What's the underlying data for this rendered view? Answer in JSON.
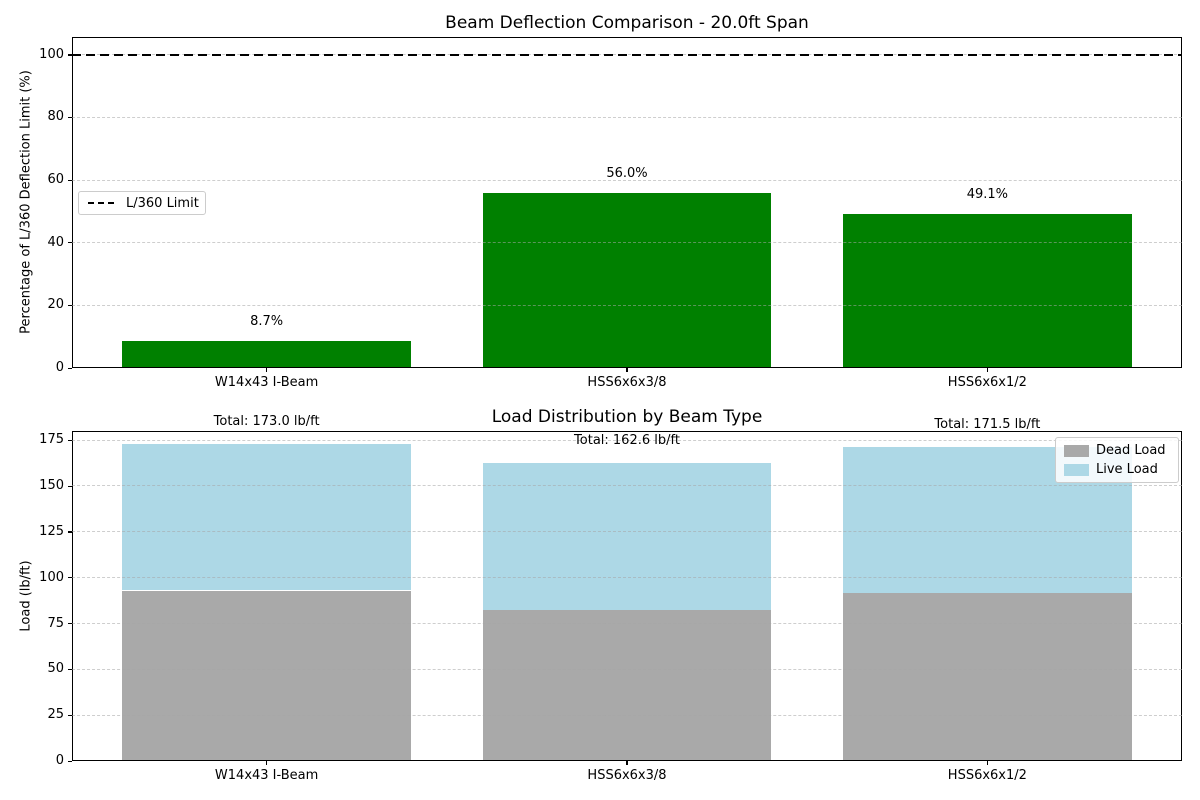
{
  "chart_data": [
    {
      "id": "deflection-comparison",
      "type": "bar",
      "title": "Beam Deflection Comparison - 20.0ft Span",
      "ylabel": "Percentage of L/360 Deflection Limit (%)",
      "xlabel": "",
      "categories": [
        "W14x43 I-Beam",
        "HSS6x6x3/8",
        "HSS6x6x1/2"
      ],
      "values": [
        8.7,
        56.0,
        49.1
      ],
      "bar_labels": [
        "8.7%",
        "56.0%",
        "49.1%"
      ],
      "bar_color": "#008000",
      "yticks": [
        0,
        20,
        40,
        60,
        80,
        100
      ],
      "ylim": [
        0,
        105.7
      ],
      "grid": "dashed horizontal",
      "ref_line": {
        "value": 100,
        "label": "L/360 Limit",
        "color": "#000000",
        "linestyle": "dashed"
      },
      "legend_position": "center-left"
    },
    {
      "id": "load-distribution",
      "type": "bar",
      "stacked": true,
      "title": "Load Distribution by Beam Type",
      "ylabel": "Load (lb/ft)",
      "xlabel": "",
      "categories": [
        "W14x43 I-Beam",
        "HSS6x6x3/8",
        "HSS6x6x1/2"
      ],
      "series": [
        {
          "name": "Dead Load",
          "color": "#a9a9a9",
          "values": [
            93.0,
            82.6,
            91.5
          ]
        },
        {
          "name": "Live Load",
          "color": "#add8e6",
          "values": [
            80.0,
            80.0,
            80.0
          ]
        }
      ],
      "totals": [
        173.0,
        162.6,
        171.5
      ],
      "total_labels": [
        "Total: 173.0 lb/ft",
        "Total: 162.6 lb/ft",
        "Total: 171.5 lb/ft"
      ],
      "yticks": [
        0,
        25,
        50,
        75,
        100,
        125,
        150,
        175
      ],
      "ylim": [
        0,
        180
      ],
      "grid": "dashed horizontal",
      "legend_position": "upper-right"
    }
  ]
}
